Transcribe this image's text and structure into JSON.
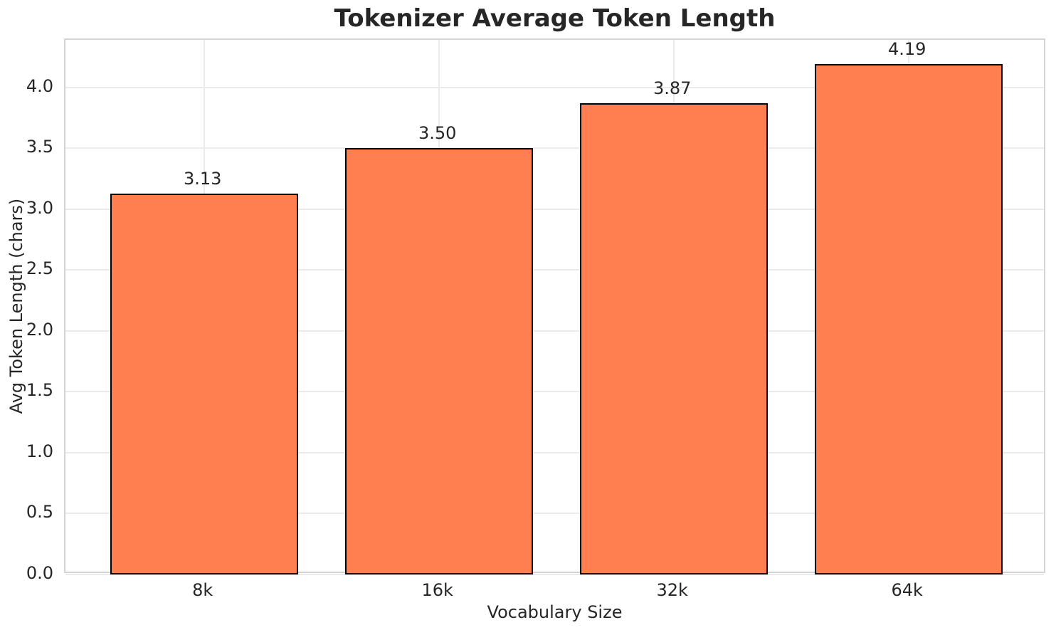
{
  "chart_data": {
    "type": "bar",
    "title": "Tokenizer Average Token Length",
    "xlabel": "Vocabulary Size",
    "ylabel": "Avg Token Length (chars)",
    "categories": [
      "8k",
      "16k",
      "32k",
      "64k"
    ],
    "values": [
      3.13,
      3.5,
      3.87,
      4.19
    ],
    "value_labels": [
      "3.13",
      "3.50",
      "3.87",
      "4.19"
    ],
    "yticks": [
      0.0,
      0.5,
      1.0,
      1.5,
      2.0,
      2.5,
      3.0,
      3.5,
      4.0
    ],
    "ytick_labels": [
      "0.0",
      "0.5",
      "1.0",
      "1.5",
      "2.0",
      "2.5",
      "3.0",
      "3.5",
      "4.0"
    ],
    "ylim": [
      0,
      4.39
    ],
    "grid": "both",
    "legend": "none",
    "bar_color": "#FF7F50",
    "bar_edge_color": "#000000",
    "grid_color": "#ebebeb",
    "spine_color": "#d4d4d4",
    "text_color": "#262626"
  }
}
